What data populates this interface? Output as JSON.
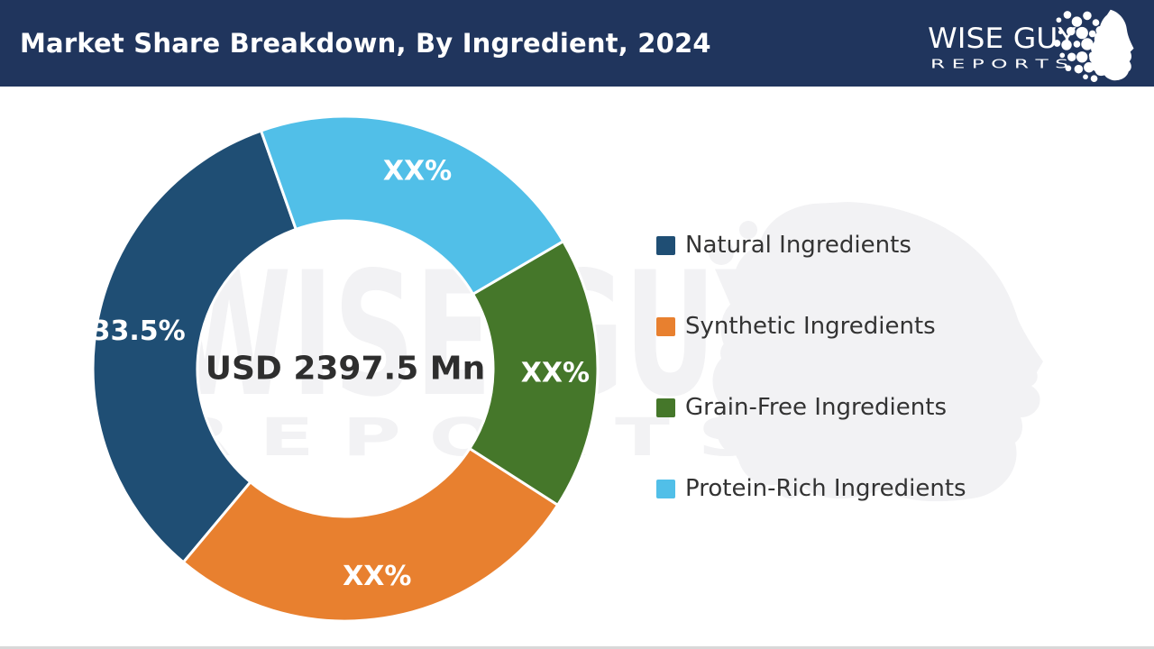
{
  "header": {
    "title": "Market Share Breakdown, By Ingredient, 2024",
    "logo": {
      "line1": "WISE GUY",
      "line2": "R E P O R T S"
    }
  },
  "watermark": {
    "line1": "WISE GUY",
    "line2": "R E P O R T S"
  },
  "chart_data": {
    "type": "donut",
    "title": "Market Share Breakdown, By Ingredient, 2024",
    "center_label": "USD 2397.5 Mn",
    "start_bearing_deg": 340.5,
    "direction": "counterclockwise",
    "legend_position": "right",
    "segments": [
      {
        "label": "Natural Ingredients",
        "value_pct": 33.5,
        "display": "33.5%",
        "color": "#1F4E74"
      },
      {
        "label": "Synthetic Ingredients",
        "value_pct": 27.0,
        "display": "XX%",
        "color": "#E8802F"
      },
      {
        "label": "Grain-Free Ingredients",
        "value_pct": 17.5,
        "display": "XX%",
        "color": "#45772A"
      },
      {
        "label": "Protein-Rich Ingredients",
        "value_pct": 22.0,
        "display": "XX%",
        "color": "#51BFE8"
      }
    ]
  },
  "colors": {
    "header_bg": "#20355D",
    "title_text": "#FFFFFF",
    "center_text": "#2E2E2E",
    "legend_text": "#333333",
    "watermark": "#F2F2F4",
    "segment_label_text": "#FFFFFF",
    "bottom_line": "#D8D8D8"
  }
}
